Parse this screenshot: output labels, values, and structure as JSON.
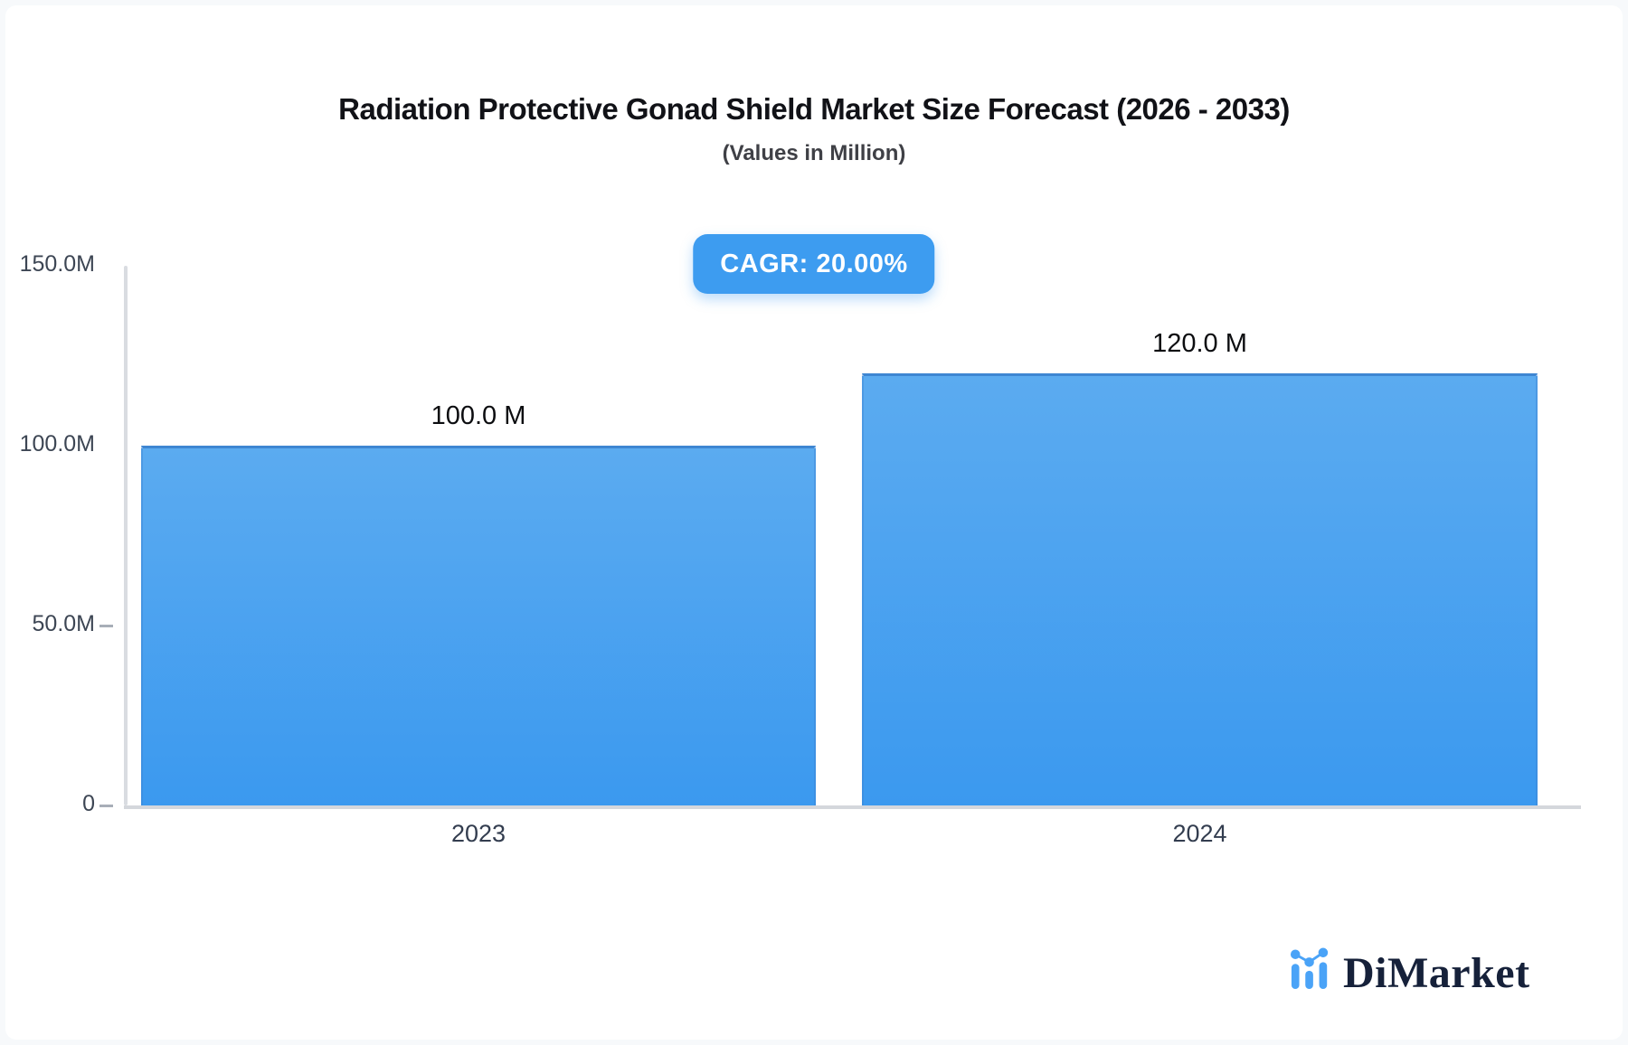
{
  "header": {
    "title": "Radiation Protective Gonad Shield Market Size Forecast (2026 - 2033)",
    "subtitle": "(Values in Million)",
    "cagr_label": "CAGR: 20.00%"
  },
  "badge": {
    "background_color": "#3d9cf0",
    "text_color": "#ffffff"
  },
  "chart_data": {
    "type": "bar",
    "categories": [
      "2023",
      "2024"
    ],
    "values": [
      100.0,
      120.0
    ],
    "bar_labels": [
      "100.0 M",
      "120.0 M"
    ],
    "title": "Radiation Protective Gonad Shield Market Size Forecast (2026 - 2033)",
    "subtitle": "(Values in Million)",
    "xlabel": "",
    "ylabel": "",
    "ylim": [
      0,
      150
    ],
    "grid": false,
    "legend": "none",
    "yticks": [
      {
        "value": 150,
        "label": "150.0M",
        "dash": false
      },
      {
        "value": 100,
        "label": "100.0M",
        "dash": false
      },
      {
        "value": 50,
        "label": "50.0M",
        "dash": true
      },
      {
        "value": 0,
        "label": "0",
        "dash": true
      }
    ],
    "bar_gradient_top": "#5babf0",
    "bar_gradient_bottom": "#3b99ef",
    "bar_top_border_color": "#3e86d2",
    "axis_color": "#d6d9de"
  },
  "brand": {
    "name": "DiMarket",
    "icon": "bar-chart-trend-icon",
    "icon_color": "#4aa3f7",
    "text_color": "#16213a"
  }
}
